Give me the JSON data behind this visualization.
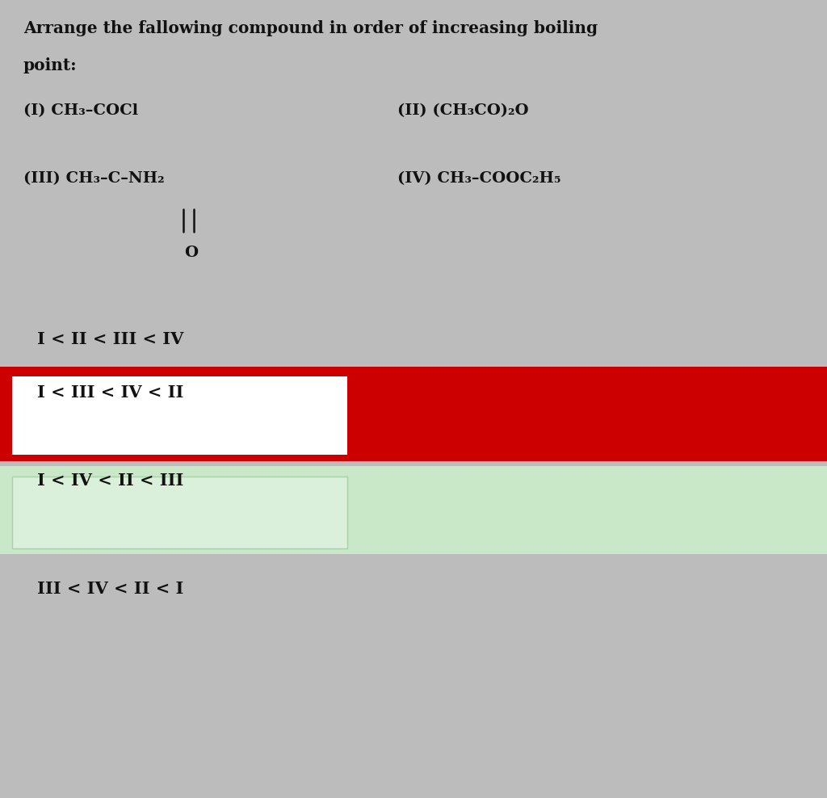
{
  "title_line1": "Arrange the fallowing compound in order of increasing boiling",
  "title_line2": "point:",
  "compound_I": "(I) CH₃–COCl",
  "compound_II": "(II) (CH₃CO)₂O",
  "compound_III_top": "(III) CH₃–C–NH₂",
  "compound_III_O": "O",
  "compound_IV": "(IV) CH₃–COOC₂H₅",
  "option_A": "I < II < III < IV",
  "option_B": "I < III < IV < II",
  "option_C": "I < IV < II < III",
  "option_D": "III < IV < II < I",
  "bg_color": "#bcbcbc",
  "red_color": "#cc0000",
  "green_color": "#c8e8c8",
  "white_color": "#ffffff",
  "text_color": "#111111",
  "fig_width": 10.24,
  "fig_height": 9.88
}
